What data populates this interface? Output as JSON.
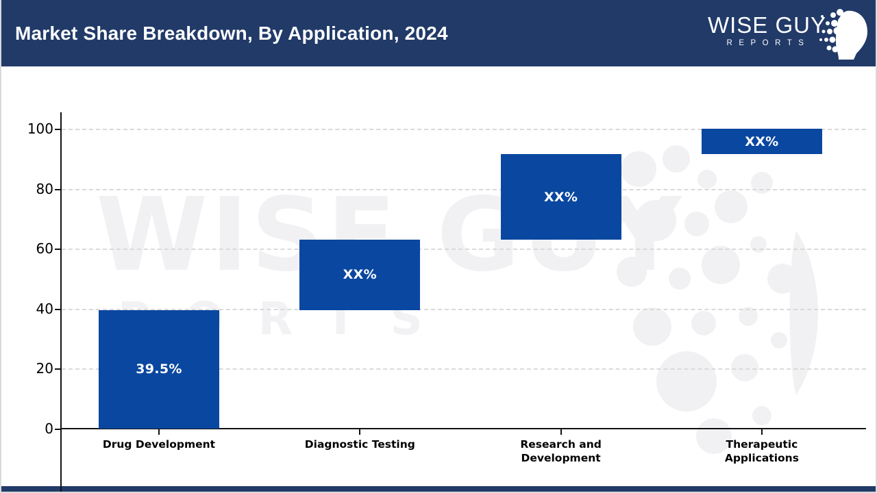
{
  "header": {
    "title": "Market Share Breakdown, By Application, 2024",
    "bg_color": "#213a68",
    "logo": {
      "line1": "WISE GUY",
      "line2": "REPORTS"
    }
  },
  "watermark": {
    "line1": "WISE GUY",
    "line2": "PORTS"
  },
  "chart_data": {
    "type": "bar",
    "subtype": "waterfall",
    "title": "Market Share Breakdown, By Application, 2024",
    "categories": [
      "Drug Development",
      "Diagnostic Testing",
      "Research and Development",
      "Therapeutic Applications"
    ],
    "categories_display": [
      [
        "Drug Development"
      ],
      [
        "Diagnostic Testing"
      ],
      [
        "Research and",
        "Development"
      ],
      [
        "Therapeutic",
        "Applications"
      ]
    ],
    "segments": [
      {
        "category": "Drug Development",
        "start": 0,
        "end": 39.5,
        "value": 39.5,
        "value_label": "39.5%"
      },
      {
        "category": "Diagnostic Testing",
        "start": 39.5,
        "end": 63,
        "value": 23.5,
        "value_label": "XX%"
      },
      {
        "category": "Research and Development",
        "start": 63,
        "end": 91.5,
        "value": 28.5,
        "value_label": "XX%"
      },
      {
        "category": "Therapeutic Applications",
        "start": 91.5,
        "end": 100,
        "value": 8.5,
        "value_label": "XX%"
      }
    ],
    "yticks": [
      0,
      20,
      40,
      60,
      80,
      100
    ],
    "ylim": [
      0,
      105
    ],
    "xlabel": "",
    "ylabel": "",
    "grid": "horizontal-dashed",
    "legend": "none",
    "bar_color": "#0a47a0",
    "bar_label_color": "#ffffff"
  }
}
